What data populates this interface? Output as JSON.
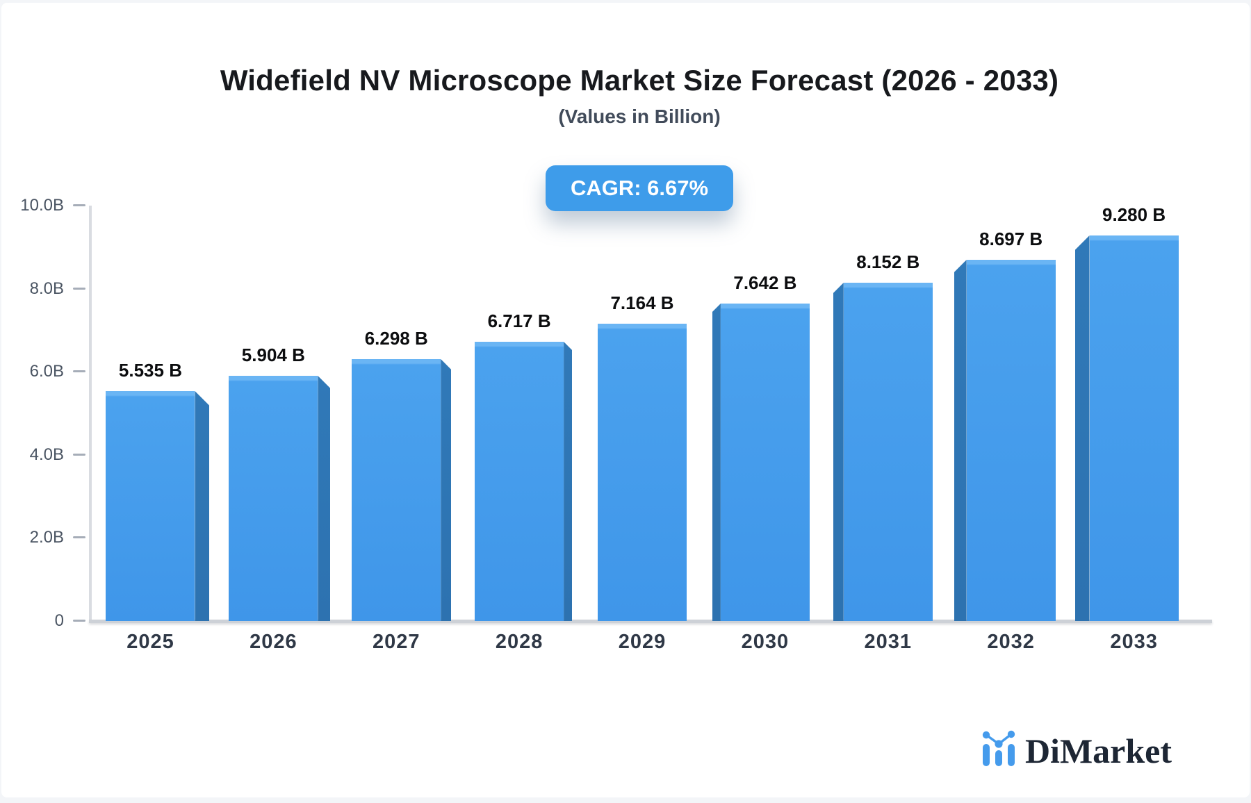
{
  "header": {
    "title": "Widefield NV Microscope Market Size Forecast (2026 - 2033)",
    "subtitle": "(Values in Billion)",
    "cagr_badge": "CAGR: 6.67%"
  },
  "chart_data": {
    "type": "bar",
    "title": "Widefield NV Microscope Market Size Forecast (2026 - 2033)",
    "subtitle": "(Values in Billion)",
    "cagr_label": "CAGR: 6.67%",
    "categories": [
      "2025",
      "2026",
      "2027",
      "2028",
      "2029",
      "2030",
      "2031",
      "2032",
      "2033"
    ],
    "values": [
      5.535,
      5.904,
      6.298,
      6.717,
      7.164,
      7.642,
      8.152,
      8.697,
      9.28
    ],
    "value_labels": [
      "5.535 B",
      "5.904 B",
      "6.298 B",
      "6.717 B",
      "7.164 B",
      "7.642 B",
      "8.152 B",
      "8.697 B",
      "9.280 B"
    ],
    "value_suffix": " B",
    "ylim": [
      0,
      10
    ],
    "ytick_values": [
      10,
      8,
      6,
      4,
      2,
      0
    ],
    "ytick_labels": [
      "10.0B",
      "8.0B",
      "6.0B",
      "4.0B",
      "2.0B",
      "0"
    ],
    "grid": false,
    "legend": false,
    "bar_face_color": "#459ceb",
    "bar_side_color": "#2e75b4",
    "bar_top_color": "#6ab5f4"
  },
  "colors": {
    "badge_bg": "#3e9cea",
    "badge_text": "#ffffff",
    "axis_line": "#d9dce1",
    "baseline": "#cdd1d7",
    "title_text": "#17191d",
    "subtitle_text": "#414b5a",
    "ytick_text": "#4b5563",
    "xlabel_text": "#2f3846",
    "value_label_text": "#0c0d0f",
    "logo_blue": "#459bec",
    "logo_text": "#1d2634"
  },
  "logo": {
    "name": "DiMarket",
    "icon": "dimarket-chart-icon"
  }
}
